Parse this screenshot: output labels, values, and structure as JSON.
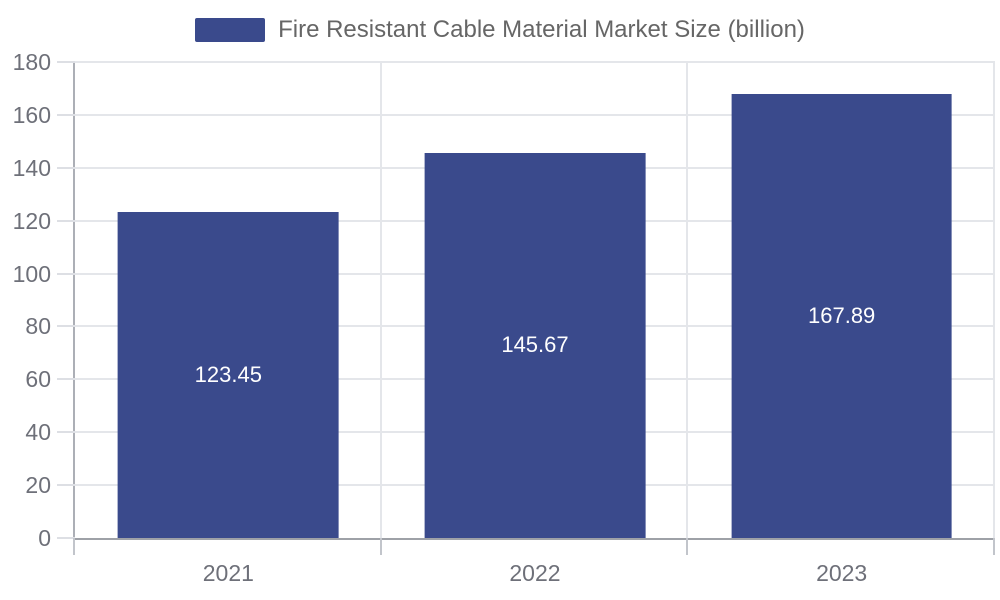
{
  "chart_data": {
    "type": "bar",
    "title": "Fire Resistant Cable Material Market Size (billion)",
    "categories": [
      "2021",
      "2022",
      "2023"
    ],
    "values": [
      123.45,
      145.67,
      167.89
    ],
    "value_labels": [
      "123.45",
      "145.67",
      "167.89"
    ],
    "xlabel": "",
    "ylabel": "",
    "ylim": [
      0,
      180
    ],
    "ytick_step": 20,
    "ytick_labels": [
      "0",
      "20",
      "40",
      "60",
      "80",
      "100",
      "120",
      "140",
      "160",
      "180"
    ],
    "grid": true,
    "legend_position": "top-center",
    "colors": {
      "bar": "#3A4A8C",
      "bar_value_text": "#FFFFFF",
      "legend_text": "#666666",
      "axis_text": "#6E7079",
      "gridline": "#E4E6EA",
      "axis_line": "#9EA1A7",
      "background": "#FFFFFF"
    }
  }
}
